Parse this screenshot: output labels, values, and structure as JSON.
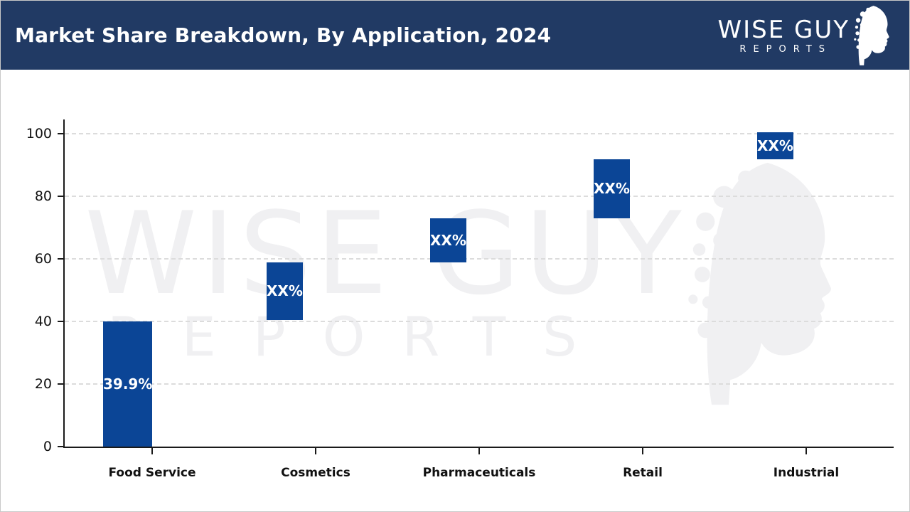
{
  "header": {
    "title": "Market Share Breakdown, By Application, 2024",
    "brand": {
      "line1": "WISE GUY",
      "line2": "REPORTS"
    }
  },
  "watermark": {
    "line1": "WISE GUY",
    "line2": "REPORTS"
  },
  "colors": {
    "header_bg": "#213A64",
    "bar_blue": "#0B4596",
    "axis": "#1a1a1a",
    "gridline": "#dcdcdc",
    "watermark": "#f0f0f2"
  },
  "chart_data": {
    "type": "bar",
    "subtype": "waterfall",
    "title": "Market Share Breakdown, By Application, 2024",
    "categories": [
      "Food Service",
      "Cosmetics",
      "Pharmaceuticals",
      "Retail",
      "Industrial"
    ],
    "segments": [
      {
        "category": "Food Service",
        "start": 0,
        "end": 39.9,
        "label": "39.9%"
      },
      {
        "category": "Cosmetics",
        "start": 40.5,
        "end": 58.9,
        "label": "XX%"
      },
      {
        "category": "Pharmaceuticals",
        "start": 58.9,
        "end": 73.0,
        "label": "XX%"
      },
      {
        "category": "Retail",
        "start": 73.0,
        "end": 91.8,
        "label": "XX%"
      },
      {
        "category": "Industrial",
        "start": 91.8,
        "end": 100.4,
        "label": "XX%"
      }
    ],
    "y_ticks": [
      0,
      20,
      40,
      60,
      80,
      100
    ],
    "ylim": [
      0,
      104.5
    ],
    "xlabel": "",
    "ylabel": "",
    "grid": "dashed-horizontal",
    "legend": "none",
    "bar_color": "#0B4596",
    "value_label_color": "#ffffff"
  }
}
